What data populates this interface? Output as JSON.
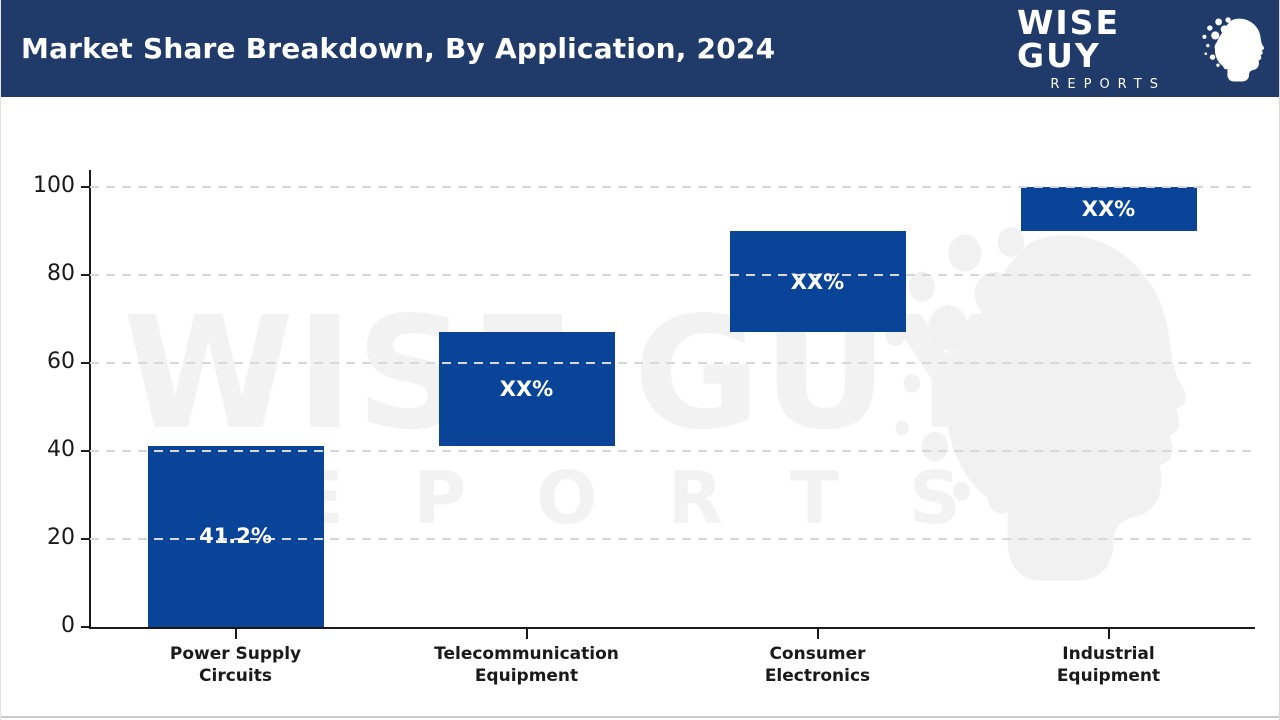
{
  "header": {
    "title": "Market Share Breakdown, By Application, 2024",
    "bg_color": "#203a69",
    "logo": {
      "line1": "WISE GUY",
      "line2": "REPORTS"
    }
  },
  "watermark": {
    "line1": "WISE GUY",
    "line2": "REPORTS"
  },
  "chart_data": {
    "type": "bar",
    "variant": "floating-waterfall",
    "title": "Market Share Breakdown, By Application, 2024",
    "categories": [
      "Power Supply Circuits",
      "Telecommunication Equipment",
      "Consumer Electronics",
      "Industrial Equipment"
    ],
    "category_lines": [
      [
        "Power Supply",
        "Circuits"
      ],
      [
        "Telecommunication",
        "Equipment"
      ],
      [
        "Consumer",
        "Electronics"
      ],
      [
        "Industrial",
        "Equipment"
      ]
    ],
    "segments": [
      [
        0,
        41.2
      ],
      [
        41.2,
        67
      ],
      [
        67,
        90
      ],
      [
        90,
        100
      ]
    ],
    "values": [
      41.2,
      25.8,
      23,
      10
    ],
    "bar_labels": [
      "41.2%",
      "XX%",
      "XX%",
      "XX%"
    ],
    "yticks": [
      0,
      20,
      40,
      60,
      80,
      100
    ],
    "ylim": [
      0,
      104
    ],
    "xlabel": "",
    "ylabel": "",
    "grid": "horizontal-dashed-over-bars",
    "legend": "none",
    "bar_color": "#0a4499",
    "bar_label_color": "#ffffff",
    "grid_color": "#d8d8d8",
    "axis_color": "#1a1a1a"
  }
}
